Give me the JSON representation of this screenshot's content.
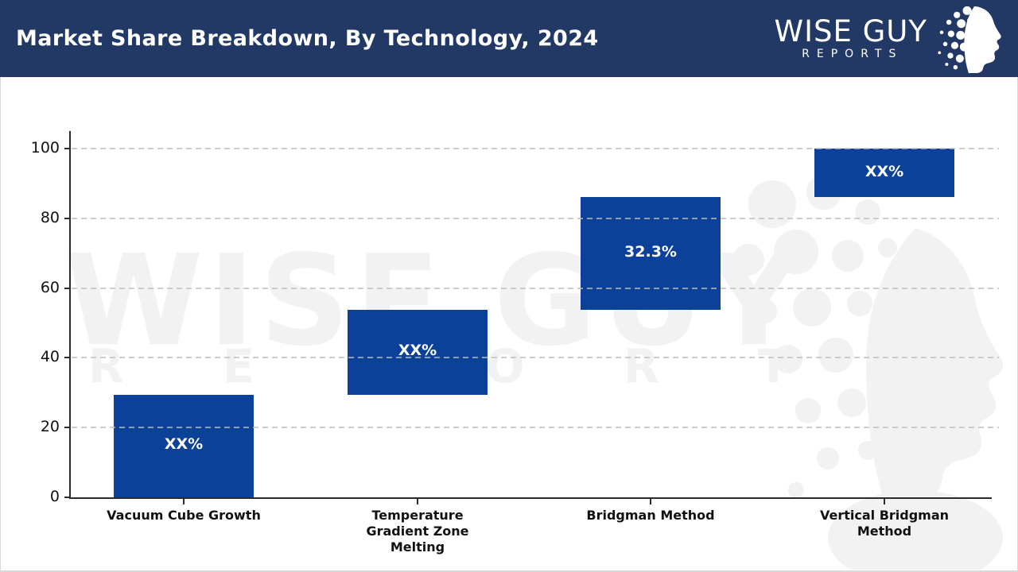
{
  "header": {
    "title": "Market Share Breakdown, By Technology, 2024",
    "logo": {
      "line1": "WISE GUY",
      "line2": "REPORTS"
    },
    "bg_color": "#223865"
  },
  "watermark": {
    "line1": "WISE GUY",
    "line2": "REPORTS"
  },
  "chart_data": {
    "type": "bar",
    "subtype": "waterfall",
    "title": "Market Share Breakdown, By Technology, 2024",
    "categories": [
      "Vacuum Cube Growth",
      "Temperature Gradient Zone Melting",
      "Bridgman Method",
      "Vertical Bridgman Method"
    ],
    "category_lines": [
      [
        "Vacuum Cube Growth"
      ],
      [
        "Temperature",
        "Gradient Zone",
        "Melting"
      ],
      [
        "Bridgman Method"
      ],
      [
        "Vertical Bridgman",
        "Method"
      ]
    ],
    "series": [
      {
        "name": "Market Share",
        "bar_starts": [
          0,
          29.4,
          53.8,
          86.1
        ],
        "bar_ends": [
          29.4,
          53.8,
          86.1,
          100
        ],
        "values": [
          29.4,
          24.4,
          32.3,
          13.9
        ],
        "bar_labels": [
          "XX%",
          "XX%",
          "32.3%",
          "XX%"
        ]
      }
    ],
    "xlabel": "",
    "ylabel": "",
    "ylim": [
      0,
      100
    ],
    "yticks": [
      0,
      20,
      40,
      60,
      80,
      100
    ],
    "grid": "horizontal-dashed-over-bars",
    "legend": "none",
    "bar_color": "#0c419a"
  }
}
